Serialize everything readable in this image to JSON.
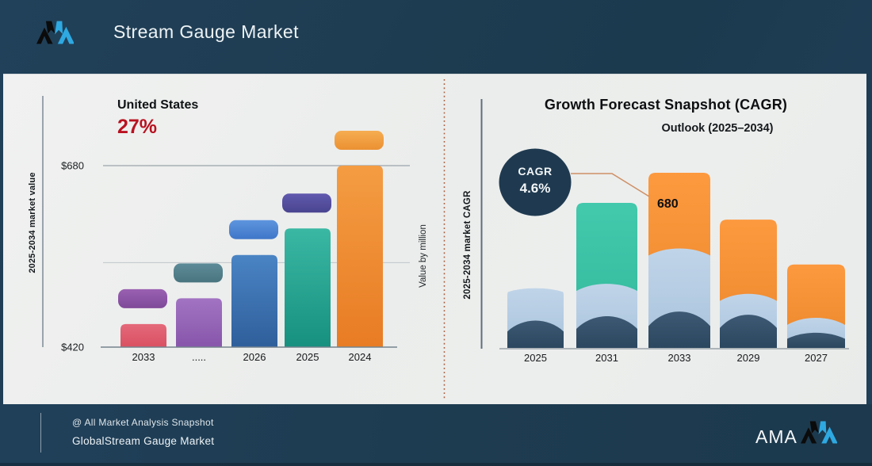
{
  "header": {
    "title": "Stream Gauge Market",
    "logo_name": "AMA"
  },
  "palette": {
    "band_navy": "#1e3c51",
    "panel_light": "#edefee",
    "accent_red": "#b91220",
    "logo_blue": "#2fa9e1",
    "logo_black": "#0b0b0b",
    "callout_line": "#cf9066",
    "badge_fill": "#1f3a50",
    "divider_dots": "#a85f3e"
  },
  "left_panel": {
    "region_label": "United States",
    "percent_value": "27%",
    "y_axis_title": "2025-2034 market value",
    "secondary_axis_title": "Value by million"
  },
  "right_panel": {
    "title": "Growth Forecast Snapshot (CAGR)",
    "subtitle": "Outlook (2025–2034)",
    "y_axis_title": "2025-2034 market CAGR",
    "badge_line1": "CAGR",
    "badge_line2": "4.6%",
    "callout_value": "680"
  },
  "footer": {
    "credit_line1": "@ All Market Analysis Snapshot",
    "credit_line2": "GlobalStream Gauge Market",
    "brand_text": "AMA"
  },
  "chart_data": [
    {
      "type": "bar",
      "title": "United States",
      "annotation": "27%",
      "categories": [
        "2033",
        ".....",
        "2026",
        "2025",
        "2024"
      ],
      "values": [
        453,
        490,
        552,
        590,
        680
      ],
      "ylabel": "2025-2034 market value",
      "ylabel_right": "Value by million",
      "ylim": [
        420,
        700
      ],
      "yticks": [
        {
          "value": 420,
          "label": "$420"
        },
        {
          "value": 680,
          "label": "$680"
        }
      ],
      "gridline_values": [
        680,
        541
      ],
      "legend": "none",
      "bar_colors": [
        [
          "#e4697a",
          "#d95062"
        ],
        [
          "#a273c2",
          "#8756ab"
        ],
        [
          "#4a84c4",
          "#2f5f9b"
        ],
        [
          "#3ab8a4",
          "#17907f"
        ],
        [
          "#f49c42",
          "#e87c24"
        ]
      ],
      "cap_colors": [
        [
          "#9a60b2",
          "#7f4a99"
        ],
        [
          "#5d8b98",
          "#49757f"
        ],
        [
          "#5e95de",
          "#4076c8"
        ],
        [
          "#6059ae",
          "#4a4590"
        ],
        [
          "#f6ad52",
          "#eb9132"
        ]
      ]
    },
    {
      "type": "stacked-bar",
      "title": "Growth Forecast Snapshot (CAGR)",
      "subtitle": "Outlook (2025–2034)",
      "ylabel": "2025-2034 market CAGR",
      "categories": [
        "2025",
        "2031",
        "2033",
        "2029",
        "2027"
      ],
      "series": [
        {
          "name": "base",
          "values": [
            106,
            123,
            141,
            129,
            59
          ]
        },
        {
          "name": "mid",
          "values": [
            126,
            126,
            245,
            81,
            58
          ]
        },
        {
          "name": "top",
          "values": [
            0,
            314,
            294,
            288,
            207
          ]
        }
      ],
      "segment_colors": {
        "base": [
          "#3d5973",
          "#2b4760"
        ],
        "mid": [
          "#c0d4e8",
          "#a9c4dd"
        ],
        "top_by_bar": [
          null,
          "#35bb9e",
          "#ef8b30",
          "#ef8b30",
          "#ef8b30"
        ]
      },
      "annotated_bar": "2033",
      "annotation_value": "680",
      "badge": {
        "line1": "CAGR",
        "line2": "4.6%"
      },
      "legend": "none"
    }
  ]
}
